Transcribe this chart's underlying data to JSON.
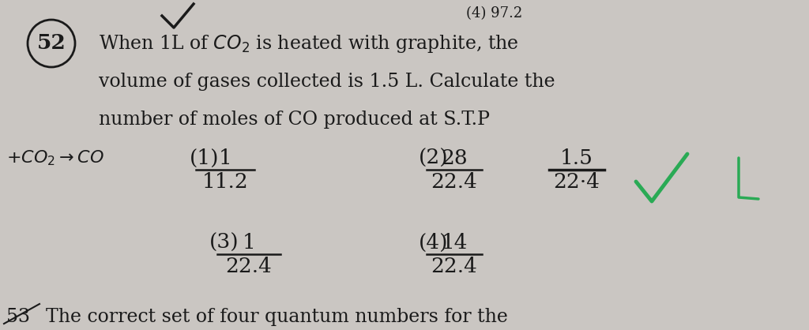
{
  "bg_color": "#cac6c2",
  "question_number": "52",
  "title_line1": "When 1L of $CO_2$ is heated with graphite, the",
  "title_line2": "volume of gases collected is 1.5 L. Calculate the",
  "title_line3": "number of moles of CO produced at S.T.P",
  "note_text": "$+CO_2 \\rightarrow CO$",
  "prev_top_left": "(4) 97.2",
  "options": [
    {
      "label": "(1)",
      "numerator": "1",
      "denominator": "11.2"
    },
    {
      "label": "(2)",
      "numerator": "28",
      "denominator": "22.4"
    },
    {
      "label": "(3)",
      "numerator": "1",
      "denominator": "22.4"
    },
    {
      "label": "(4)",
      "numerator": "14",
      "denominator": "22.4"
    }
  ],
  "answer_numerator": "1.5",
  "answer_denominator": "22·4",
  "checkmark_color": "#2aaa55",
  "text_color": "#1a1a1a",
  "bottom_num": "53",
  "bottom_text": "The correct set of four quantum numbers for the",
  "font_size_small": 13,
  "font_size_title": 17,
  "font_size_options": 19,
  "font_size_note": 16
}
